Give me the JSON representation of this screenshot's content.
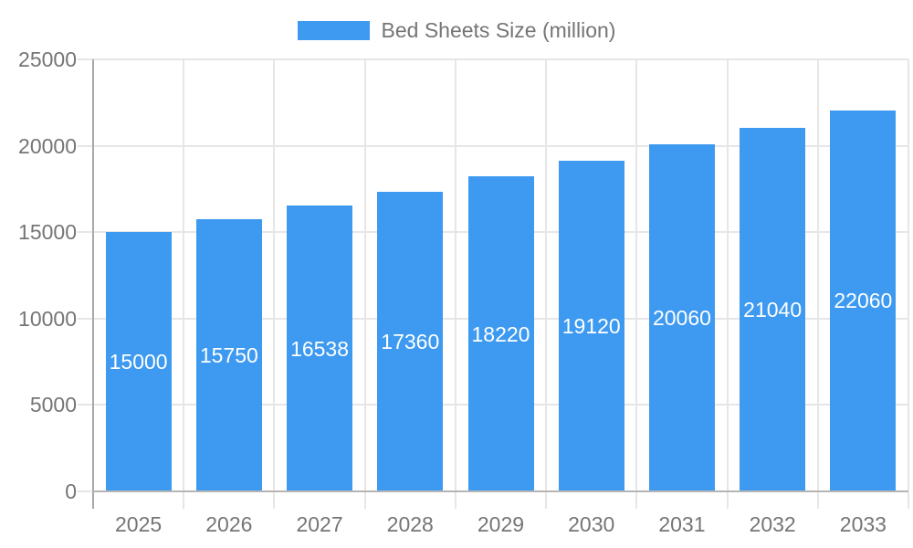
{
  "chart_data": {
    "type": "bar",
    "title": "Bed Sheets Size (million)",
    "legend": {
      "position": "top",
      "label": "Bed Sheets Size (million)"
    },
    "categories": [
      "2025",
      "2026",
      "2027",
      "2028",
      "2029",
      "2030",
      "2031",
      "2032",
      "2033"
    ],
    "values": [
      15000,
      15750,
      16538,
      17360,
      18220,
      19120,
      20060,
      21040,
      22060
    ],
    "xlabel": "",
    "ylabel": "",
    "ylim": [
      0,
      25000
    ],
    "yticks": [
      0,
      5000,
      10000,
      15000,
      20000,
      25000
    ],
    "grid": true,
    "bar_label_position": "inside-center",
    "colors": {
      "bar": "#3D9AF0",
      "grid": "#e6e6e6",
      "axis_y": "#a8a8a8",
      "axis_x": "#b5b5b5",
      "tick_text": "#757575",
      "bar_label_text": "#ffffff",
      "background": "#ffffff"
    }
  }
}
